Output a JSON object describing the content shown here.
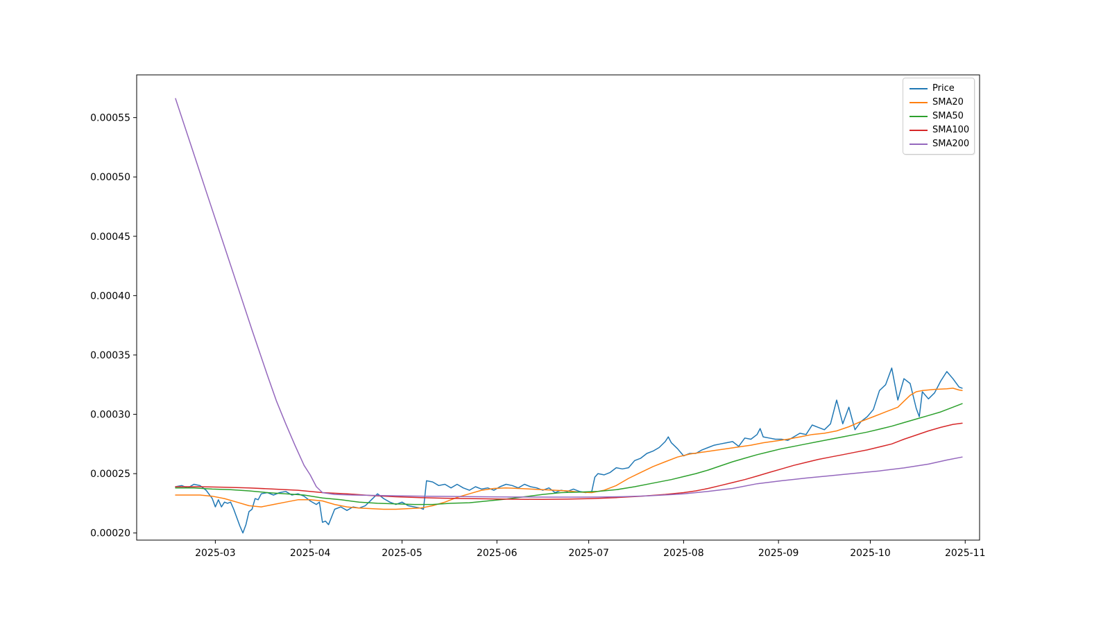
{
  "figure": {
    "background": "#ffffff"
  },
  "chart_data": {
    "type": "line",
    "title": "",
    "xlabel": "",
    "ylabel": "",
    "grid": false,
    "legend_position": "upper right",
    "x_unit": "date",
    "start_date": "2025-02-16",
    "end_date": "2025-10-31",
    "xlim_days_from_start": [
      -12.7,
      262.7
    ],
    "ylim": [
      0.000194,
      0.000586
    ],
    "x_ticks": [
      {
        "label": "2025-03",
        "day": 13
      },
      {
        "label": "2025-04",
        "day": 44
      },
      {
        "label": "2025-05",
        "day": 74
      },
      {
        "label": "2025-06",
        "day": 105
      },
      {
        "label": "2025-07",
        "day": 135
      },
      {
        "label": "2025-08",
        "day": 166
      },
      {
        "label": "2025-09",
        "day": 197
      },
      {
        "label": "2025-10",
        "day": 227
      },
      {
        "label": "2025-11",
        "day": 258
      }
    ],
    "y_ticks": [
      {
        "label": "0.00020",
        "value": 0.0002
      },
      {
        "label": "0.00025",
        "value": 0.00025
      },
      {
        "label": "0.00030",
        "value": 0.0003
      },
      {
        "label": "0.00035",
        "value": 0.00035
      },
      {
        "label": "0.00040",
        "value": 0.0004
      },
      {
        "label": "0.00045",
        "value": 0.00045
      },
      {
        "label": "0.00050",
        "value": 0.0005
      },
      {
        "label": "0.00055",
        "value": 0.00055
      }
    ],
    "series": [
      {
        "name": "Price",
        "color": "#1f77b4",
        "days": [
          0,
          2,
          4,
          6,
          8,
          10,
          12,
          13,
          14,
          15,
          16,
          17,
          18,
          19,
          20,
          21,
          22,
          23,
          24,
          25,
          26,
          27,
          28,
          30,
          32,
          34,
          36,
          38,
          40,
          42,
          44,
          46,
          47,
          48,
          49,
          50,
          52,
          54,
          56,
          58,
          60,
          62,
          64,
          66,
          68,
          70,
          72,
          74,
          76,
          78,
          80,
          81,
          82,
          84,
          86,
          88,
          90,
          92,
          94,
          96,
          98,
          100,
          102,
          104,
          106,
          108,
          110,
          112,
          114,
          116,
          118,
          120,
          122,
          124,
          126,
          128,
          130,
          132,
          134,
          136,
          137,
          138,
          140,
          142,
          144,
          146,
          148,
          150,
          152,
          154,
          156,
          158,
          160,
          161,
          162,
          164,
          166,
          168,
          170,
          172,
          174,
          176,
          178,
          180,
          182,
          184,
          186,
          188,
          190,
          191,
          192,
          194,
          196,
          198,
          200,
          202,
          204,
          206,
          208,
          210,
          212,
          214,
          216,
          218,
          220,
          222,
          224,
          226,
          228,
          230,
          232,
          234,
          236,
          238,
          240,
          242,
          243,
          244,
          246,
          248,
          250,
          252,
          254,
          256,
          257
        ],
        "values": [
          0.000239,
          0.00024,
          0.000238,
          0.000241,
          0.00024,
          0.000236,
          0.000229,
          0.000222,
          0.000228,
          0.000222,
          0.000226,
          0.000225,
          0.000226,
          0.00022,
          0.000213,
          0.000206,
          0.0002,
          0.000207,
          0.000218,
          0.00022,
          0.000229,
          0.000228,
          0.000233,
          0.000234,
          0.000232,
          0.000234,
          0.000235,
          0.000232,
          0.000233,
          0.000231,
          0.000227,
          0.000224,
          0.000226,
          0.000209,
          0.00021,
          0.000207,
          0.00022,
          0.000222,
          0.000219,
          0.000222,
          0.000221,
          0.000223,
          0.000228,
          0.000233,
          0.000229,
          0.000226,
          0.000224,
          0.000226,
          0.000223,
          0.000222,
          0.000221,
          0.00022,
          0.000244,
          0.000243,
          0.00024,
          0.000241,
          0.000238,
          0.000241,
          0.000238,
          0.000236,
          0.000239,
          0.000237,
          0.000238,
          0.000236,
          0.000239,
          0.000241,
          0.00024,
          0.000238,
          0.000241,
          0.000239,
          0.000238,
          0.000236,
          0.000238,
          0.000234,
          0.000236,
          0.000235,
          0.000237,
          0.000235,
          0.000234,
          0.000235,
          0.000247,
          0.00025,
          0.000249,
          0.000251,
          0.000255,
          0.000254,
          0.000255,
          0.000261,
          0.000263,
          0.000267,
          0.000269,
          0.000272,
          0.000277,
          0.000281,
          0.000276,
          0.000271,
          0.000265,
          0.000267,
          0.000267,
          0.00027,
          0.000272,
          0.000274,
          0.000275,
          0.000276,
          0.000277,
          0.000273,
          0.00028,
          0.000279,
          0.000283,
          0.000288,
          0.000281,
          0.00028,
          0.000279,
          0.000279,
          0.000278,
          0.000281,
          0.000284,
          0.000283,
          0.000291,
          0.000289,
          0.000287,
          0.000292,
          0.000312,
          0.000292,
          0.000306,
          0.000287,
          0.000294,
          0.000298,
          0.000304,
          0.00032,
          0.000325,
          0.000339,
          0.000312,
          0.00033,
          0.000326,
          0.000305,
          0.000298,
          0.000319,
          0.000313,
          0.000318,
          0.000328,
          0.000336,
          0.00033,
          0.000323,
          0.000322
        ]
      },
      {
        "name": "SMA20",
        "color": "#ff7f0e",
        "days": [
          0,
          4,
          8,
          12,
          16,
          20,
          24,
          28,
          32,
          36,
          40,
          44,
          48,
          52,
          56,
          60,
          64,
          68,
          72,
          76,
          80,
          84,
          88,
          92,
          96,
          100,
          104,
          108,
          112,
          116,
          120,
          124,
          128,
          132,
          136,
          140,
          144,
          148,
          152,
          156,
          160,
          164,
          168,
          172,
          176,
          180,
          184,
          188,
          192,
          196,
          200,
          204,
          208,
          212,
          216,
          220,
          224,
          228,
          232,
          236,
          238,
          240,
          242,
          244,
          248,
          252,
          254,
          256,
          257
        ],
        "values": [
          0.000232,
          0.000232,
          0.000232,
          0.000231,
          0.000229,
          0.000226,
          0.000223,
          0.000222,
          0.000224,
          0.000226,
          0.000228,
          0.000228,
          0.000227,
          0.000224,
          0.000222,
          0.000221,
          0.0002205,
          0.00022,
          0.00022,
          0.0002205,
          0.000221,
          0.000223,
          0.000226,
          0.00023,
          0.000233,
          0.000236,
          0.0002375,
          0.000238,
          0.0002375,
          0.000237,
          0.0002365,
          0.000236,
          0.0002355,
          0.0002345,
          0.000234,
          0.000236,
          0.00024,
          0.000246,
          0.000251,
          0.000256,
          0.00026,
          0.000264,
          0.0002665,
          0.000268,
          0.0002695,
          0.000271,
          0.0002725,
          0.000274,
          0.000276,
          0.0002775,
          0.000279,
          0.000281,
          0.000283,
          0.000284,
          0.000286,
          0.0002895,
          0.000294,
          0.000298,
          0.000302,
          0.000306,
          0.000311,
          0.000316,
          0.000319,
          0.00032,
          0.000321,
          0.0003215,
          0.000322,
          0.0003205,
          0.00032
        ]
      },
      {
        "name": "SMA50",
        "color": "#2ca02c",
        "days": [
          0,
          6,
          12,
          18,
          24,
          30,
          36,
          42,
          48,
          54,
          60,
          66,
          72,
          78,
          84,
          90,
          96,
          102,
          108,
          114,
          120,
          126,
          132,
          138,
          144,
          150,
          156,
          162,
          166,
          170,
          174,
          178,
          182,
          186,
          190,
          194,
          198,
          202,
          206,
          210,
          214,
          218,
          222,
          226,
          230,
          234,
          238,
          242,
          246,
          250,
          254,
          257
        ],
        "values": [
          0.000238,
          0.000238,
          0.000237,
          0.0002365,
          0.0002355,
          0.000234,
          0.000233,
          0.000232,
          0.0002295,
          0.000228,
          0.000226,
          0.000225,
          0.0002245,
          0.000224,
          0.000224,
          0.000225,
          0.0002255,
          0.000227,
          0.0002285,
          0.0002305,
          0.0002325,
          0.000234,
          0.0002345,
          0.000235,
          0.0002365,
          0.000239,
          0.000242,
          0.000245,
          0.0002475,
          0.00025,
          0.000253,
          0.0002565,
          0.00026,
          0.000263,
          0.000266,
          0.0002685,
          0.000271,
          0.000273,
          0.000275,
          0.000277,
          0.000279,
          0.000281,
          0.000283,
          0.000285,
          0.0002875,
          0.00029,
          0.000293,
          0.000296,
          0.000299,
          0.000302,
          0.000306,
          0.000309
        ]
      },
      {
        "name": "SMA100",
        "color": "#d62728",
        "days": [
          0,
          8,
          16,
          24,
          32,
          40,
          48,
          56,
          64,
          72,
          80,
          88,
          96,
          104,
          112,
          120,
          128,
          136,
          144,
          152,
          160,
          166,
          170,
          174,
          178,
          182,
          186,
          190,
          194,
          198,
          202,
          206,
          210,
          214,
          218,
          222,
          226,
          230,
          234,
          238,
          242,
          246,
          250,
          254,
          257
        ],
        "values": [
          0.000239,
          0.000239,
          0.0002385,
          0.000238,
          0.000237,
          0.000236,
          0.000234,
          0.000233,
          0.0002315,
          0.0002305,
          0.0002298,
          0.0002293,
          0.000229,
          0.0002287,
          0.0002284,
          0.0002283,
          0.0002285,
          0.000229,
          0.0002298,
          0.000231,
          0.0002325,
          0.000234,
          0.0002355,
          0.0002375,
          0.00024,
          0.0002425,
          0.000245,
          0.000248,
          0.000251,
          0.000254,
          0.000257,
          0.0002595,
          0.000262,
          0.000264,
          0.000266,
          0.000268,
          0.00027,
          0.0002725,
          0.000275,
          0.000279,
          0.0002825,
          0.000286,
          0.000289,
          0.0002915,
          0.0002925
        ]
      },
      {
        "name": "SMA200",
        "color": "#9467bd",
        "days": [
          0,
          5,
          10,
          15,
          20,
          25,
          30,
          33,
          36,
          39,
          42,
          44,
          46,
          48,
          52,
          58,
          66,
          74,
          82,
          90,
          98,
          106,
          114,
          122,
          130,
          138,
          146,
          154,
          162,
          166,
          174,
          182,
          190,
          198,
          206,
          214,
          222,
          230,
          238,
          246,
          252,
          257
        ],
        "values": [
          0.000566,
          0.000527,
          0.000488,
          0.000449,
          0.00041,
          0.000371,
          0.000333,
          0.000311,
          0.000292,
          0.000274,
          0.000257,
          0.000249,
          0.000239,
          0.000234,
          0.0002325,
          0.000232,
          0.0002316,
          0.0002313,
          0.000231,
          0.0002308,
          0.0002306,
          0.0002304,
          0.0002303,
          0.0002302,
          0.0002302,
          0.0002303,
          0.0002306,
          0.0002313,
          0.0002323,
          0.000233,
          0.000235,
          0.0002375,
          0.0002415,
          0.000244,
          0.0002463,
          0.0002483,
          0.0002503,
          0.0002523,
          0.0002548,
          0.000258,
          0.0002615,
          0.000264
        ]
      }
    ]
  }
}
